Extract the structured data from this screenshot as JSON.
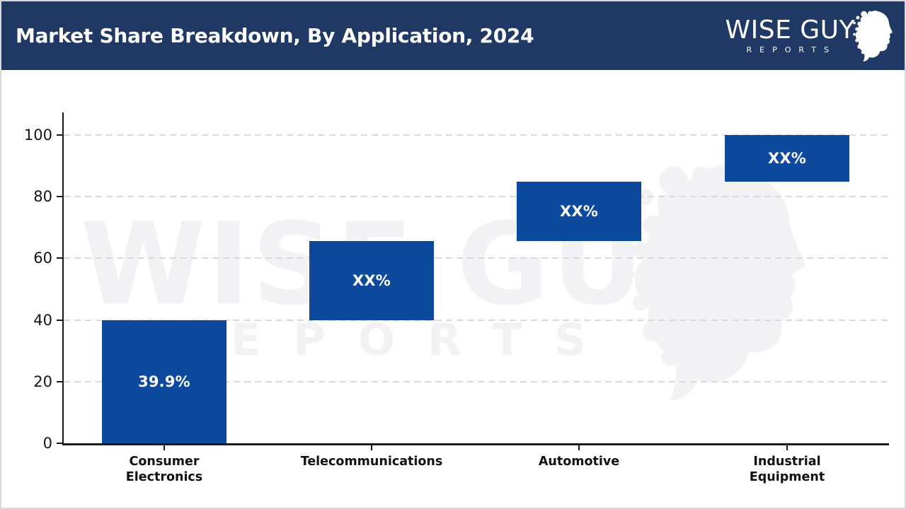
{
  "header": {
    "title": "Market Share Breakdown, By Application, 2024",
    "logo": {
      "line1": "WISE GUY",
      "line2": "REPORTS"
    }
  },
  "watermark": {
    "line1": "WISE GUY",
    "line2": "REPORTS"
  },
  "colors": {
    "header_bg": "#1f3864",
    "bar": "#0d4a9e",
    "bar_label": "#ffffff",
    "gridline": "#d9d9d9",
    "axis": "#1a1a1a",
    "tick_label": "#151515",
    "watermark": "#f2f2f4",
    "page_border": "#d9d9d9"
  },
  "chart_data": {
    "type": "bar",
    "subtype": "floating-stacked-percentage-breakdown",
    "title": "Market Share Breakdown, By Application, 2024",
    "xlabel": "",
    "ylabel": "",
    "ylim": [
      0,
      105
    ],
    "yticks": [
      0,
      20,
      40,
      60,
      80,
      100
    ],
    "grid": "horizontal-dashed",
    "legend": "none",
    "categories": [
      "Consumer Electronics",
      "Telecommunications",
      "Automotive",
      "Industrial Equipment"
    ],
    "segments": [
      {
        "category": "Consumer Electronics",
        "lines": [
          "Consumer",
          "Electronics"
        ],
        "start": 0,
        "end": 39.9,
        "value_label": "39.9%",
        "estimated_value": 39.9
      },
      {
        "category": "Telecommunications",
        "lines": [
          "Telecommunications"
        ],
        "start": 39.9,
        "end": 65.6,
        "value_label": "XX%",
        "estimated_value": 25.7
      },
      {
        "category": "Automotive",
        "lines": [
          "Automotive"
        ],
        "start": 65.6,
        "end": 84.8,
        "value_label": "XX%",
        "estimated_value": 19.2
      },
      {
        "category": "Industrial Equipment",
        "lines": [
          "Industrial",
          "Equipment"
        ],
        "start": 84.8,
        "end": 100,
        "value_label": "XX%",
        "estimated_value": 15.2
      }
    ]
  }
}
